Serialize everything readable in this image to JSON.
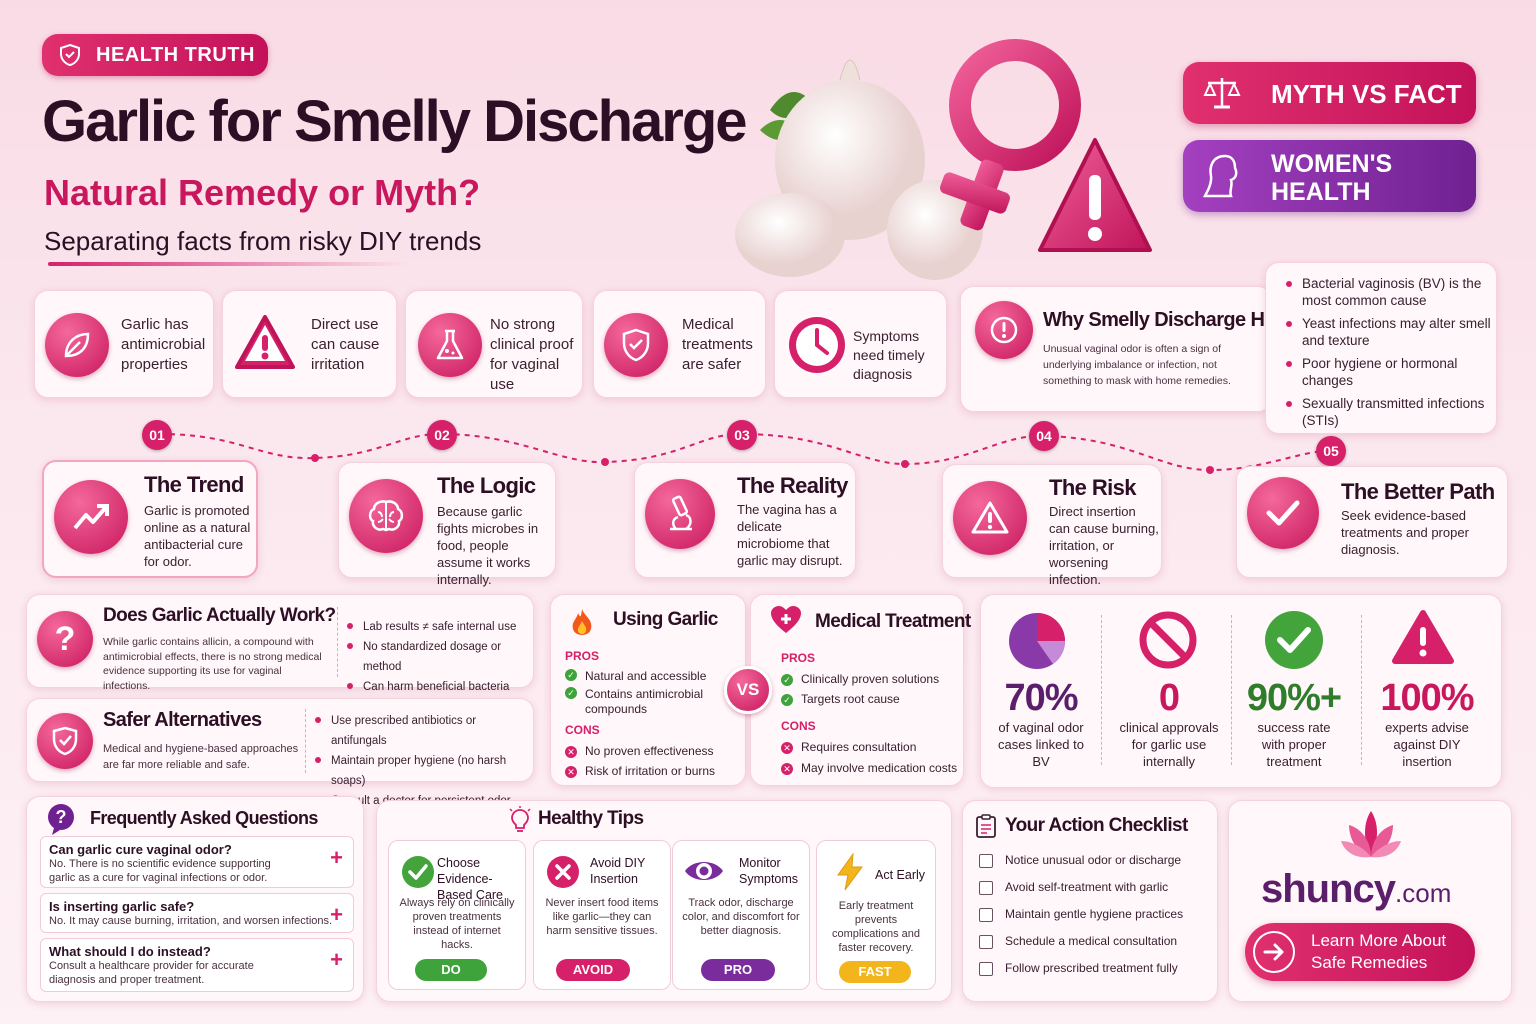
{
  "badge": {
    "label": "HEALTH TRUTH"
  },
  "header": {
    "title": "Garlic for Smelly Discharge",
    "subtitle": "Natural Remedy or Myth?",
    "tagline": "Separating facts from risky DIY trends"
  },
  "top_pills": {
    "myth_vs_fact": "MYTH VS FACT",
    "womens_health_1": "WOMEN'S",
    "womens_health_2": "HEALTH"
  },
  "facts": [
    {
      "text": "Garlic has antimicrobial properties",
      "icon": "leaf-icon"
    },
    {
      "text": "Direct use can cause irritation",
      "icon": "warning-icon"
    },
    {
      "text": "No strong clinical proof for vaginal use",
      "icon": "flask-icon"
    },
    {
      "text": "Medical treatments are safer",
      "icon": "shield-check-icon"
    },
    {
      "text": "Symptoms need timely diagnosis",
      "icon": "clock-icon"
    }
  ],
  "why": {
    "title": "Why Smelly Discharge Happens",
    "text": "Unusual vaginal odor is often a sign of underlying imbalance or infection, not something to mask with home remedies.",
    "causes": [
      "Bacterial vaginosis (BV) is the most common cause",
      "Yeast infections may alter smell and texture",
      "Poor hygiene or hormonal changes",
      "Sexually transmitted infections (STIs)"
    ]
  },
  "steps": [
    {
      "num": "01",
      "title": "The Trend",
      "text": "Garlic is promoted online as a natural antibacterial cure for odor.",
      "icon": "trend-up-icon"
    },
    {
      "num": "02",
      "title": "The Logic",
      "text": "Because garlic fights microbes in food, people assume it works internally.",
      "icon": "brain-icon"
    },
    {
      "num": "03",
      "title": "The Reality",
      "text": "The vagina has a delicate microbiome that garlic may disrupt.",
      "icon": "microscope-icon"
    },
    {
      "num": "04",
      "title": "The Risk",
      "text": "Direct insertion can cause burning, irritation, or worsening infection.",
      "icon": "warning-icon"
    },
    {
      "num": "05",
      "title": "The Better Path",
      "text": "Seek evidence-based treatments and proper diagnosis.",
      "icon": "check-icon"
    }
  ],
  "does_work": {
    "title": "Does Garlic Actually Work?",
    "text": "While garlic contains allicin, a compound with antimicrobial effects, there is no strong medical evidence supporting its use for vaginal infections.",
    "points": [
      "Lab results ≠ safe internal use",
      "No standardized dosage or method",
      "Can harm beneficial bacteria"
    ]
  },
  "safer": {
    "title": "Safer Alternatives",
    "text": "Medical and hygiene-based approaches are far more reliable and safe.",
    "points": [
      "Use prescribed antibiotics or antifungals",
      "Maintain proper hygiene (no harsh soaps)",
      "Consult a doctor for persistent odor"
    ]
  },
  "compare": {
    "vs": "VS",
    "garlic": {
      "title": "Using Garlic",
      "pros_label": "PROS",
      "pros": [
        "Natural and accessible",
        "Contains antimicrobial compounds"
      ],
      "cons_label": "CONS",
      "cons": [
        "No proven effectiveness",
        "Risk of irritation or burns"
      ]
    },
    "medical": {
      "title": "Medical Treatment",
      "pros_label": "PROS",
      "pros": [
        "Clinically proven solutions",
        "Targets root cause"
      ],
      "cons_label": "CONS",
      "cons": [
        "Requires consultation",
        "May involve medication costs"
      ]
    }
  },
  "stats": [
    {
      "value": "70%",
      "label": "of vaginal odor cases linked to BV",
      "color": "#5b1e6b"
    },
    {
      "value": "0",
      "label": "clinical approvals for garlic use internally",
      "color": "#c8175d"
    },
    {
      "value": "90%+",
      "label": "success rate with proper treatment",
      "color": "#2f7d2a"
    },
    {
      "value": "100%",
      "label": "experts advise against DIY insertion",
      "color": "#c8175d"
    }
  ],
  "faq": {
    "title": "Frequently Asked Questions",
    "items": [
      {
        "q": "Can garlic cure vaginal odor?",
        "a": "No. There is no scientific evidence supporting garlic as a cure for vaginal infections or odor."
      },
      {
        "q": "Is inserting garlic safe?",
        "a": "No. It may cause burning, irritation, and worsen infections."
      },
      {
        "q": "What should I do instead?",
        "a": "Consult a healthcare provider for accurate diagnosis and proper treatment."
      }
    ]
  },
  "tips": {
    "title": "Healthy Tips",
    "items": [
      {
        "head": "Choose Evidence-Based Care",
        "body": "Always rely on clinically proven treatments instead of internet hacks.",
        "tag": "DO",
        "color": "#3ea33a"
      },
      {
        "head": "Avoid DIY Insertion",
        "body": "Never insert food items like garlic—they can harm sensitive tissues.",
        "tag": "AVOID",
        "color": "#d6206a"
      },
      {
        "head": "Monitor Symptoms",
        "body": "Track odor, discharge color, and discomfort for better diagnosis.",
        "tag": "PRO",
        "color": "#7a2c9c"
      },
      {
        "head": "Act Early",
        "body": "Early treatment prevents complications and faster recovery.",
        "tag": "FAST",
        "color": "#f2b51c"
      }
    ]
  },
  "checklist": {
    "title": "Your Action Checklist",
    "items": [
      "Notice unusual odor or discharge",
      "Avoid self-treatment with garlic",
      "Maintain gentle hygiene practices",
      "Schedule a medical consultation",
      "Follow prescribed treatment fully"
    ]
  },
  "brand": {
    "name": "shuncy",
    "suffix": ".com",
    "cta_1": "Learn More About",
    "cta_2": "Safe Remedies"
  }
}
